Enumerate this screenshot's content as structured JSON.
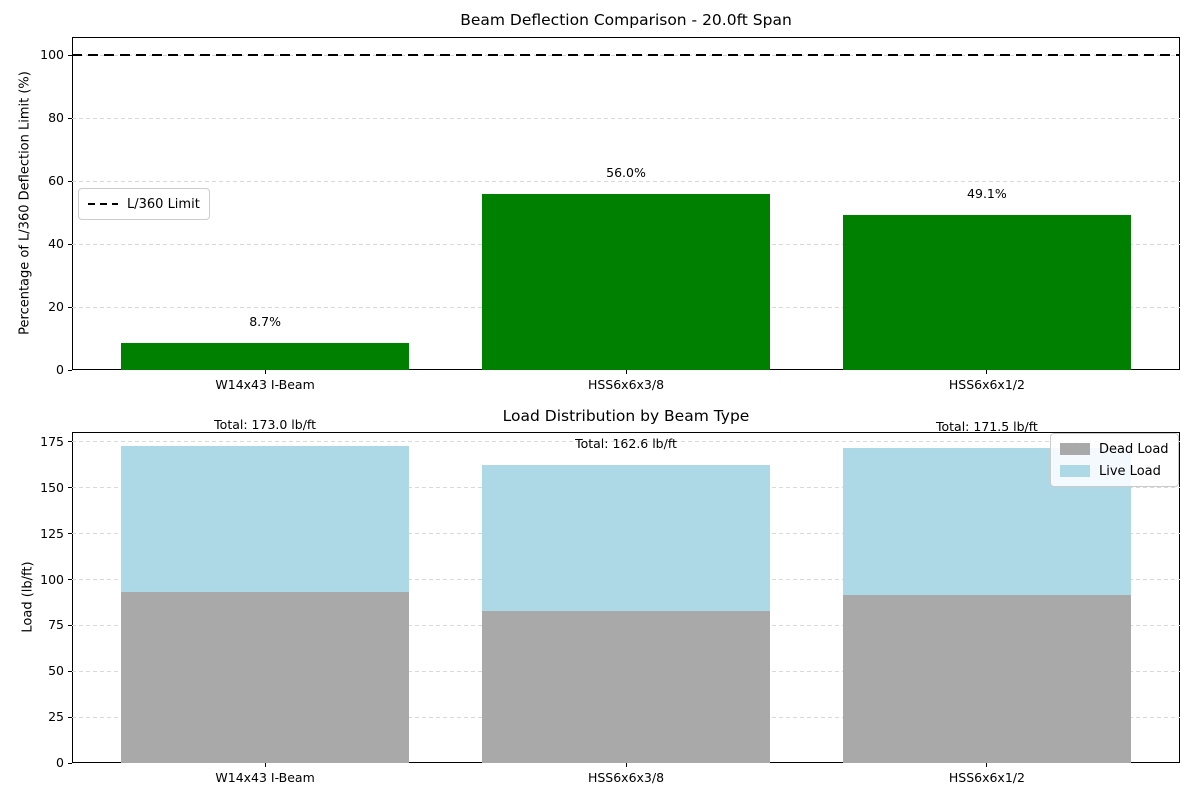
{
  "figure": {
    "background": "#ffffff"
  },
  "chart_data": [
    {
      "type": "bar",
      "title": "Beam Deflection Comparison - 20.0ft Span",
      "xlabel": "",
      "ylabel": "Percentage of L/360 Deflection Limit (%)",
      "categories": [
        "W14x43 I-Beam",
        "HSS6x6x3/8",
        "HSS6x6x1/2"
      ],
      "values": [
        8.7,
        56.0,
        49.1
      ],
      "value_labels": [
        "8.7%",
        "56.0%",
        "49.1%"
      ],
      "bar_color": "#008000",
      "yticks": [
        0,
        20,
        40,
        60,
        80,
        100
      ],
      "ylim": [
        0,
        105.8
      ],
      "grid": "horizontal dashed",
      "reference_line": {
        "value": 100,
        "color": "#000000",
        "style": "dashed",
        "label": "L/360 Limit"
      },
      "legend": {
        "position": "center left",
        "entries": [
          {
            "label": "L/360 Limit",
            "marker": "dashed-line",
            "color": "#000000"
          }
        ]
      }
    },
    {
      "type": "stacked-bar",
      "title": "Load Distribution by Beam Type",
      "xlabel": "",
      "ylabel": "Load (lb/ft)",
      "categories": [
        "W14x43 I-Beam",
        "HSS6x6x3/8",
        "HSS6x6x1/2"
      ],
      "series": [
        {
          "name": "Dead Load",
          "color": "#a9a9a9",
          "values": [
            93.0,
            82.6,
            91.5
          ]
        },
        {
          "name": "Live Load",
          "color": "#add8e6",
          "values": [
            80.0,
            80.0,
            80.0
          ]
        }
      ],
      "totals": [
        173.0,
        162.6,
        171.5
      ],
      "total_labels": [
        "Total: 173.0 lb/ft",
        "Total: 162.6 lb/ft",
        "Total: 171.5 lb/ft"
      ],
      "yticks": [
        0,
        25,
        50,
        75,
        100,
        125,
        150,
        175
      ],
      "ylim": [
        0,
        180.4
      ],
      "grid": "horizontal dashed",
      "legend": {
        "position": "upper right",
        "entries": [
          {
            "label": "Dead Load",
            "marker": "patch",
            "color": "#a9a9a9"
          },
          {
            "label": "Live Load",
            "marker": "patch",
            "color": "#add8e6"
          }
        ]
      }
    }
  ]
}
